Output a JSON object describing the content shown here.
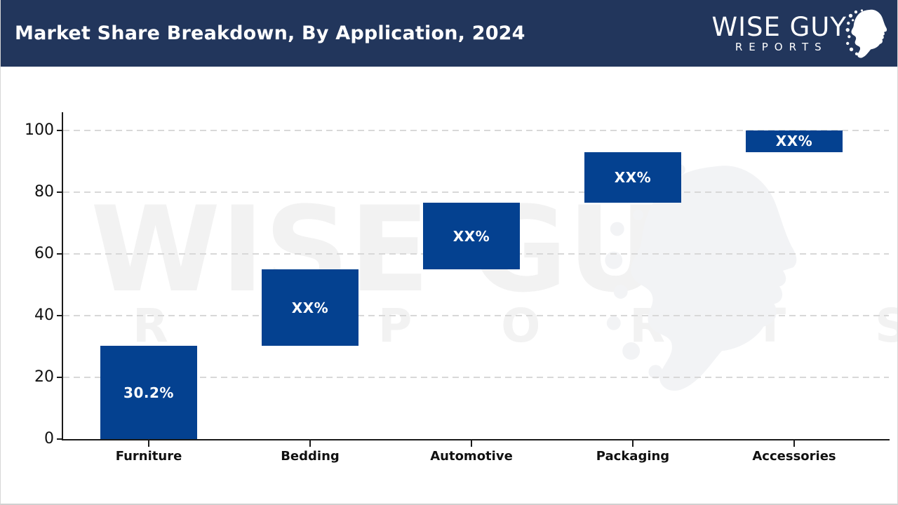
{
  "header": {
    "title": "Market Share Breakdown, By Application, 2024",
    "logo": {
      "line1": "WISE GUY",
      "line2": "REPORTS"
    }
  },
  "watermark": {
    "line1": "WISE GUY",
    "line2": "REPORTS"
  },
  "chart_data": {
    "type": "bar",
    "variant": "waterfall",
    "title": "Market Share Breakdown, By Application, 2024",
    "categories": [
      "Furniture",
      "Bedding",
      "Automotive",
      "Packaging",
      "Accessories"
    ],
    "segments": [
      {
        "category": "Furniture",
        "start": 0,
        "end": 30.2,
        "label": "30.2%"
      },
      {
        "category": "Bedding",
        "start": 30.2,
        "end": 55,
        "label": "XX%"
      },
      {
        "category": "Automotive",
        "start": 55,
        "end": 76.5,
        "label": "XX%"
      },
      {
        "category": "Packaging",
        "start": 76.5,
        "end": 93,
        "label": "XX%"
      },
      {
        "category": "Accessories",
        "start": 93,
        "end": 100,
        "label": "XX%"
      }
    ],
    "yticks": [
      0,
      20,
      40,
      60,
      80,
      100
    ],
    "ylim": [
      0,
      105
    ],
    "xlabel": "",
    "ylabel": "",
    "grid": "horizontal-dashed",
    "legend": "none",
    "bar_color": "#044190",
    "bar_label_color": "#ffffff",
    "accent_navy": "#22365c"
  }
}
